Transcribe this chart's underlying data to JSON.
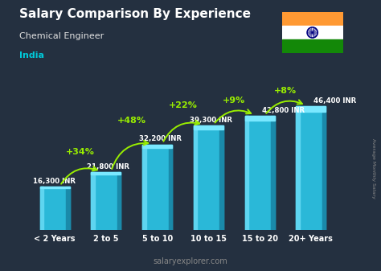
{
  "title": "Salary Comparison By Experience",
  "subtitle1": "Chemical Engineer",
  "subtitle2": "India",
  "footer": "salaryexplorer.com",
  "ylabel_rotated": "Average Monthly Salary",
  "categories": [
    "< 2 Years",
    "2 to 5",
    "5 to 10",
    "10 to 15",
    "15 to 20",
    "20+ Years"
  ],
  "values": [
    16300,
    21800,
    32200,
    39300,
    42800,
    46400
  ],
  "labels": [
    "16,300 INR",
    "21,800 INR",
    "32,200 INR",
    "39,300 INR",
    "42,800 INR",
    "46,400 INR"
  ],
  "pct_labels": [
    "+34%",
    "+48%",
    "+22%",
    "+9%",
    "+8%"
  ],
  "bar_color_main": "#2ab8d8",
  "bar_color_left": "#5ed5f0",
  "bar_color_right": "#1a8aaa",
  "bar_top_color": "#7ae8ff",
  "background_color": "#243040",
  "title_color": "#ffffff",
  "subtitle1_color": "#e0e0e0",
  "subtitle2_color": "#00c8d8",
  "label_color": "#ffffff",
  "pct_color": "#99ee00",
  "footer_color": "#888888",
  "ylabel_color": "#888888"
}
